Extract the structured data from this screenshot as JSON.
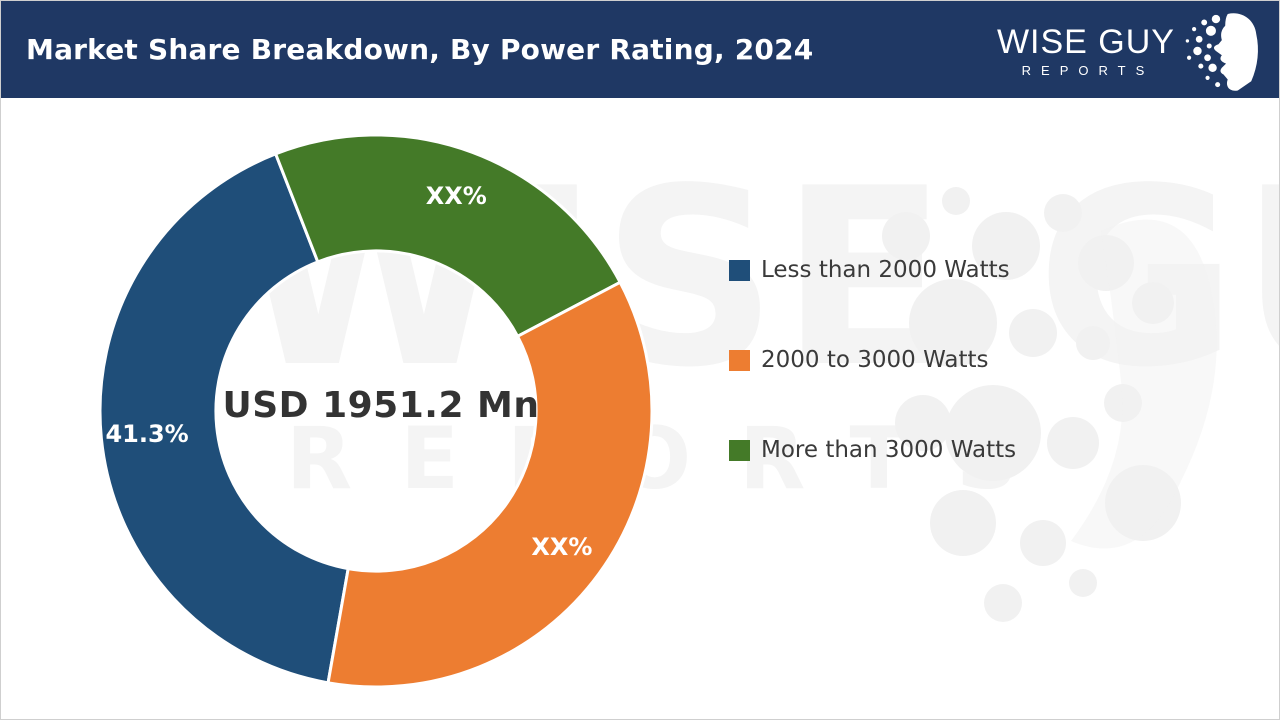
{
  "header": {
    "title": "Market Share Breakdown, By Power Rating, 2024",
    "background_color": "#1F3864",
    "logo": {
      "line1": "WISE GUY",
      "line2": "REPORTS",
      "icon": "dotted-face-profile"
    }
  },
  "watermark": {
    "line1": "WISE GUY",
    "line2": "REPORTS"
  },
  "chart_data": {
    "type": "pie",
    "subtype": "donut",
    "title": "Market Share Breakdown, By Power Rating, 2024",
    "center_label": "USD 1951.2 Mn",
    "slices": [
      {
        "name": "Less than 2000 Watts",
        "value": 41.3,
        "label": "41.3%",
        "color": "#1F4E79"
      },
      {
        "name": "2000 to 3000 Watts",
        "value": 35.5,
        "label": "XX%",
        "color": "#ED7D31"
      },
      {
        "name": "More than 3000 Watts",
        "value": 23.2,
        "label": "XX%",
        "color": "#447A28"
      }
    ],
    "notes": "Orange and green slice labels are masked as XX% in the source; their numeric values are estimated from arc angles.",
    "layout": {
      "donut_hole_ratio": 0.58,
      "start_angle_deg": 190,
      "draw_sequence": [
        0,
        2,
        1
      ],
      "legend_position": "right",
      "slice_label_color": "#FFFFFF",
      "slice_gap_color": "#FFFFFF"
    }
  }
}
